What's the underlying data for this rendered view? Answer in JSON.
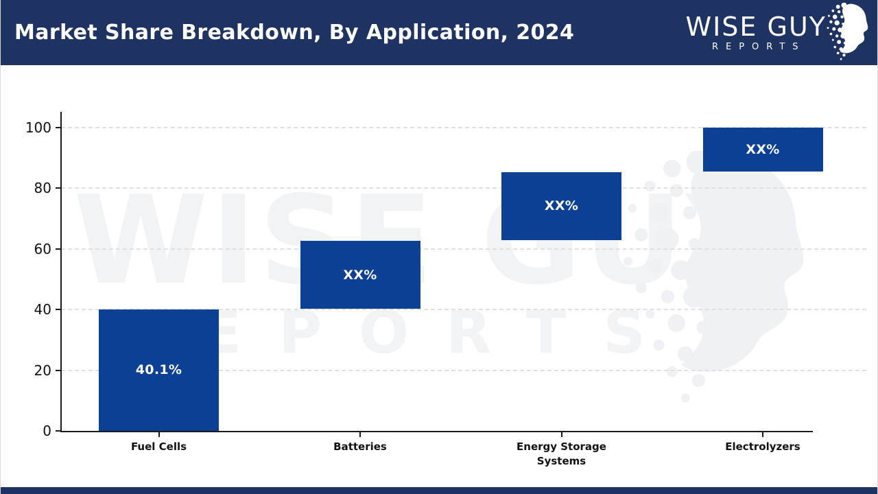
{
  "header": {
    "title": "Market Share Breakdown, By Application, 2024",
    "logo": {
      "name": "WISE GUY",
      "sub": "REPORTS"
    }
  },
  "watermark": {
    "line1": "WISE GUY",
    "line2": "REPORTS"
  },
  "colors": {
    "header_bg": "#1e3361",
    "footer_bg": "#1e3361",
    "bar": "#0b4094",
    "bar_label": "#ffffff",
    "grid": "#e1e1e1",
    "axis": "#1a1a1a",
    "tick_label": "#111111",
    "watermark": "#f2f3f5",
    "title_text": "#ffffff"
  },
  "chart_data": {
    "type": "bar",
    "subtype": "waterfall",
    "title": "Market Share Breakdown, By Application, 2024",
    "categories": [
      "Fuel Cells",
      "Batteries",
      "Energy Storage\nSystems",
      "Electrolyzers"
    ],
    "bars": [
      {
        "category": "Fuel Cells",
        "start": 0,
        "end": 40.1,
        "label": "40.1%"
      },
      {
        "category": "Batteries",
        "start": 40.2,
        "end": 62.6,
        "label": "XX%"
      },
      {
        "category": "Energy Storage Systems",
        "start": 62.8,
        "end": 85.4,
        "label": "XX%"
      },
      {
        "category": "Electrolyzers",
        "start": 85.6,
        "end": 100,
        "label": "XX%"
      }
    ],
    "xlabel": "",
    "ylabel": "",
    "ylim": [
      0,
      100
    ],
    "yticks": [
      0,
      20,
      40,
      60,
      80,
      100
    ],
    "grid": "horizontal-dashed",
    "legend": "none",
    "bar_color": "#0b4094"
  }
}
